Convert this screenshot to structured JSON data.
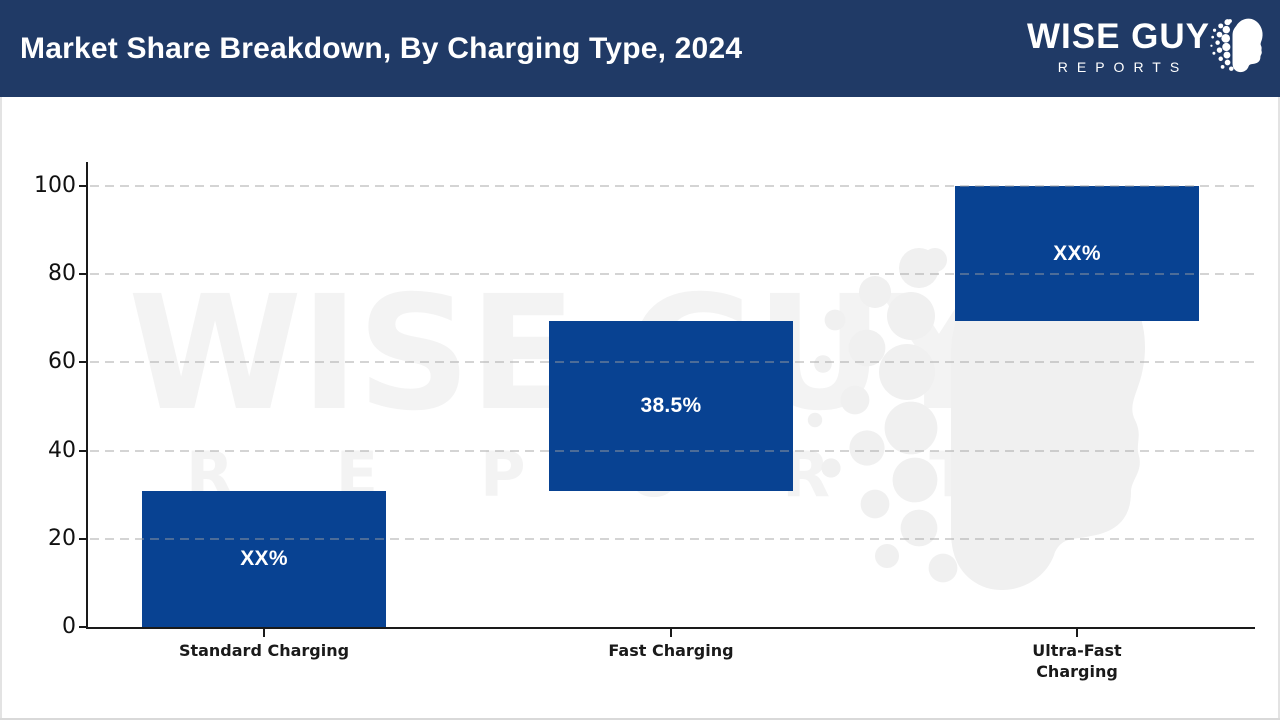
{
  "header": {
    "title": "Market Share Breakdown, By Charging Type, 2024",
    "logo": {
      "line1": "WISE GUY",
      "line2": "REPORTS"
    }
  },
  "watermark": {
    "line1": "WISE GUY",
    "line2": "REPORTS"
  },
  "chart_data": {
    "type": "bar",
    "subtype": "floating-segment-percent",
    "title": "Market Share Breakdown, By Charging Type, 2024",
    "categories": [
      "Standard Charging",
      "Fast Charging",
      "Ultra-Fast Charging"
    ],
    "bars": [
      {
        "category": "Standard Charging",
        "tick_label": "Standard Charging",
        "start": 0,
        "end": 30.8,
        "value": 30.8,
        "label": "XX%"
      },
      {
        "category": "Fast Charging",
        "tick_label": "Fast Charging",
        "start": 30.8,
        "end": 69.3,
        "value": 38.5,
        "label": "38.5%"
      },
      {
        "category": "Ultra-Fast Charging",
        "tick_label": "Ultra-Fast\nCharging",
        "start": 69.3,
        "end": 100,
        "value": 30.7,
        "label": "XX%"
      }
    ],
    "y_ticks": [
      0,
      20,
      40,
      60,
      80,
      100
    ],
    "ylim": [
      0,
      105
    ],
    "xlabel": "",
    "ylabel": "",
    "grid": "dashed horizontal",
    "legend": "none",
    "colors": {
      "bar": "#084292",
      "header_background": "#203a66",
      "axis": "#1a1a1a",
      "gridline": "#cccccc",
      "bar_label_text": "#ffffff",
      "watermark": "#f3f3f3"
    }
  }
}
